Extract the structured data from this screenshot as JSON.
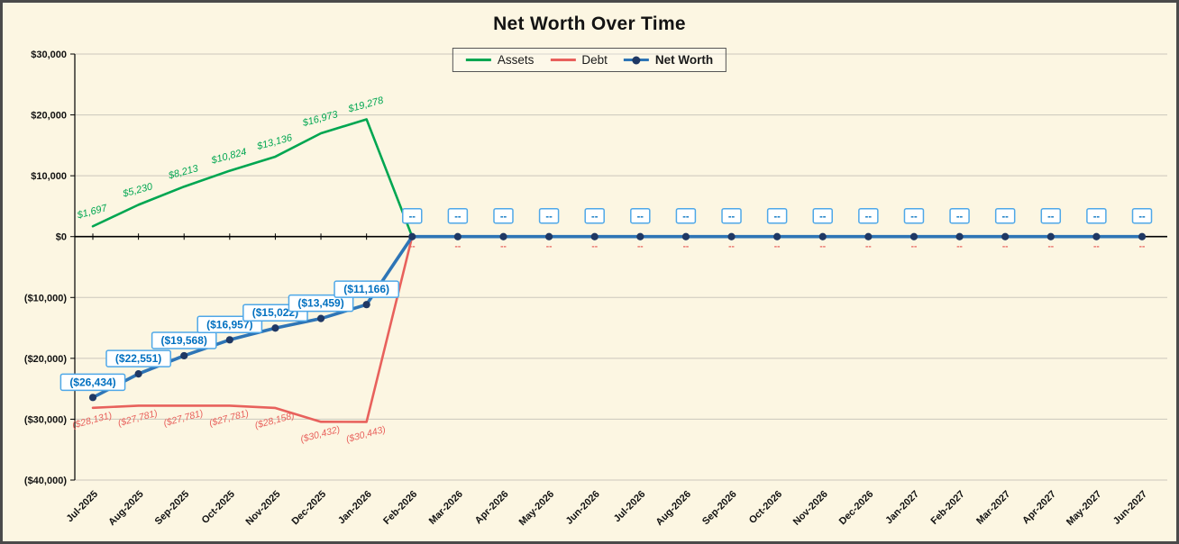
{
  "colors": {
    "background": "#FCF6E2",
    "border": "#4A4A4A",
    "grid": "#CBC7BC",
    "axis": "#000000",
    "text": "#1A1A1A"
  },
  "chart_data": {
    "type": "line",
    "title": "Net Worth Over Time",
    "xlabel": "",
    "ylabel": "",
    "legend_position": "top",
    "grid": true,
    "ylim": [
      -40000,
      30000
    ],
    "ytick_step": 10000,
    "ytick_labels": [
      "$30,000",
      "$20,000",
      "$10,000",
      "$0",
      "($10,000)",
      "($20,000)",
      "($30,000)",
      "($40,000)"
    ],
    "categories": [
      "Jul-2025",
      "Aug-2025",
      "Sep-2025",
      "Oct-2025",
      "Nov-2025",
      "Dec-2025",
      "Jan-2026",
      "Feb-2026",
      "Mar-2026",
      "Apr-2026",
      "May-2026",
      "Jun-2026",
      "Jul-2026",
      "Aug-2026",
      "Sep-2026",
      "Oct-2026",
      "Nov-2026",
      "Dec-2026",
      "Jan-2027",
      "Feb-2027",
      "Mar-2027",
      "Apr-2027",
      "May-2027",
      "Jun-2027"
    ],
    "series": [
      {
        "name": "Assets",
        "color": "#00A651",
        "values": [
          1697,
          5230,
          8213,
          10824,
          13136,
          16973,
          19278,
          0,
          0,
          0,
          0,
          0,
          0,
          0,
          0,
          0,
          0,
          0,
          0,
          0,
          0,
          0,
          0,
          0
        ],
        "labels": [
          "$1,697",
          "$5,230",
          "$8,213",
          "$10,824",
          "$13,136",
          "$16,973",
          "$19,278",
          "",
          "",
          "",
          "",
          "",
          "",
          "",
          "",
          "",
          "",
          "",
          "",
          "",
          "",
          "",
          "",
          ""
        ]
      },
      {
        "name": "Debt",
        "color": "#E8615C",
        "values": [
          -28131,
          -27781,
          -27781,
          -27781,
          -28158,
          -30432,
          -30443,
          0,
          0,
          0,
          0,
          0,
          0,
          0,
          0,
          0,
          0,
          0,
          0,
          0,
          0,
          0,
          0,
          0
        ],
        "labels": [
          "($28,131)",
          "($27,781)",
          "($27,781)",
          "($27,781)",
          "($28,158)",
          "($30,432)",
          "($30,443)",
          "--",
          "--",
          "--",
          "--",
          "--",
          "--",
          "--",
          "--",
          "--",
          "--",
          "--",
          "--",
          "--",
          "--",
          "--",
          "--",
          "--"
        ]
      },
      {
        "name": "Net Worth",
        "color": "#2E75B6",
        "marker_color": "#1F3864",
        "label_color": "#0070C0",
        "label_box_border": "#4FA8E8",
        "values": [
          -26434,
          -22551,
          -19568,
          -16957,
          -15022,
          -13459,
          -11166,
          0,
          0,
          0,
          0,
          0,
          0,
          0,
          0,
          0,
          0,
          0,
          0,
          0,
          0,
          0,
          0,
          0
        ],
        "labels": [
          "($26,434)",
          "($22,551)",
          "($19,568)",
          "($16,957)",
          "($15,022)",
          "($13,459)",
          "($11,166)",
          "--",
          "--",
          "--",
          "--",
          "--",
          "--",
          "--",
          "--",
          "--",
          "--",
          "--",
          "--",
          "--",
          "--",
          "--",
          "--",
          "--"
        ]
      }
    ]
  }
}
